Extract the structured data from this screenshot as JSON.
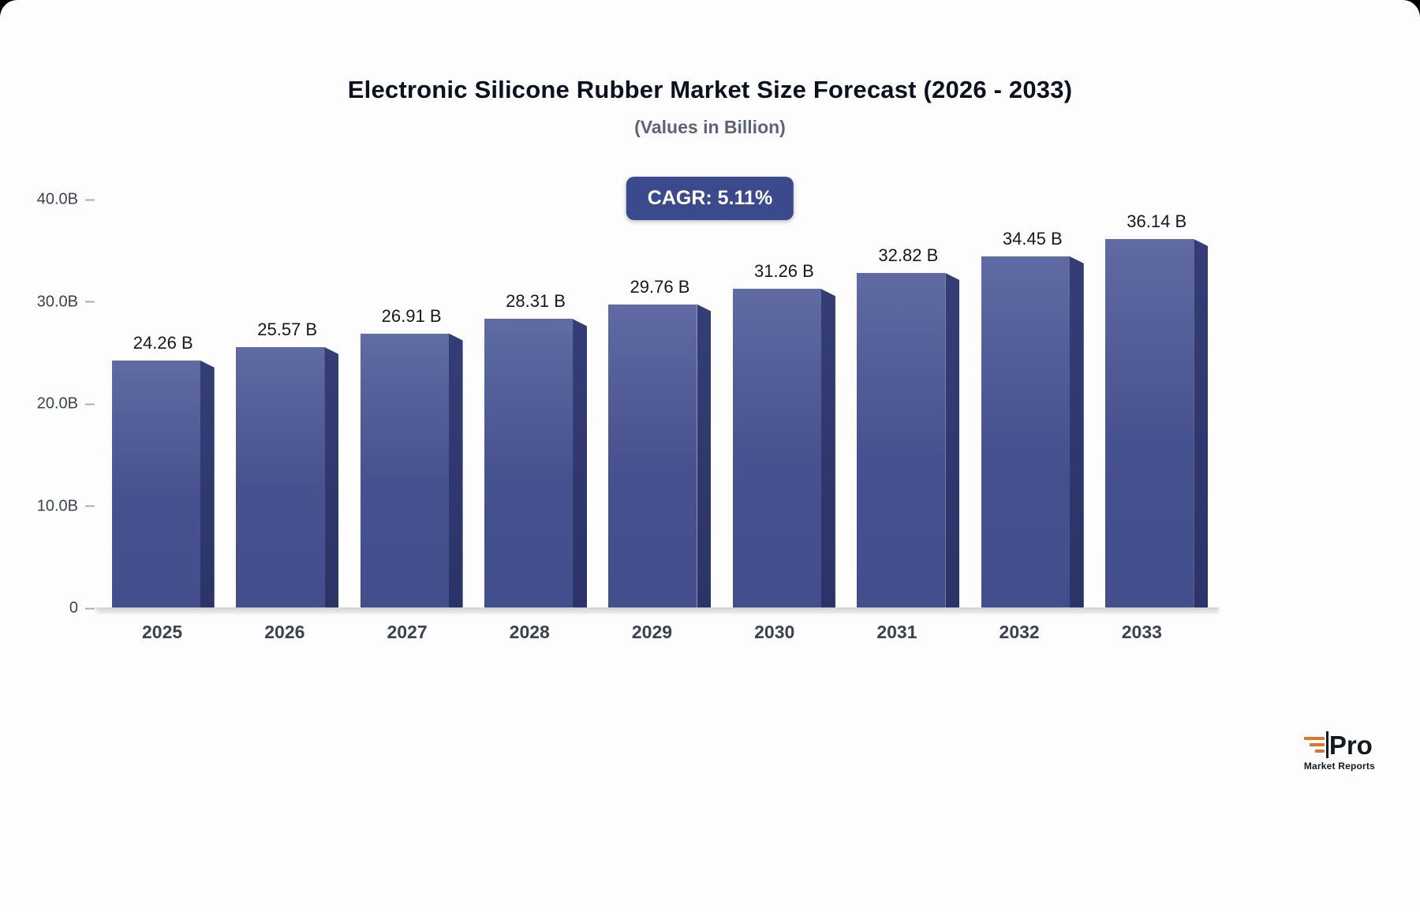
{
  "chart_data": {
    "type": "bar",
    "title": "Electronic Silicone Rubber Market Size Forecast (2026 - 2033)",
    "subtitle": "(Values in Billion)",
    "annotation": "CAGR: 5.11%",
    "categories": [
      "2025",
      "2026",
      "2027",
      "2028",
      "2029",
      "2030",
      "2031",
      "2032",
      "2033"
    ],
    "values": [
      24.26,
      25.57,
      26.91,
      28.31,
      29.76,
      31.26,
      32.82,
      34.45,
      36.14
    ],
    "value_labels": [
      "24.26 B",
      "25.57 B",
      "26.91 B",
      "28.31 B",
      "29.76 B",
      "31.26 B",
      "32.82 B",
      "34.45 B",
      "36.14 B"
    ],
    "xlabel": "",
    "ylabel": "",
    "ylim": [
      0,
      40
    ],
    "yticks": [
      {
        "label": "40.0B",
        "value": 40
      },
      {
        "label": "30.0B",
        "value": 30
      },
      {
        "label": "20.0B",
        "value": 20
      },
      {
        "label": "10.0B",
        "value": 10
      },
      {
        "label": "0",
        "value": 0
      }
    ],
    "grid": false,
    "legend": false,
    "bar_color_top": "#5f6ba2",
    "bar_color_bottom": "#434e8d",
    "bar_side_color": "#2b3468",
    "badge_color": "#3b4a8c"
  },
  "logo": {
    "text": "Pro",
    "subtext": "Market Reports",
    "accent_color": "#d9782d"
  }
}
